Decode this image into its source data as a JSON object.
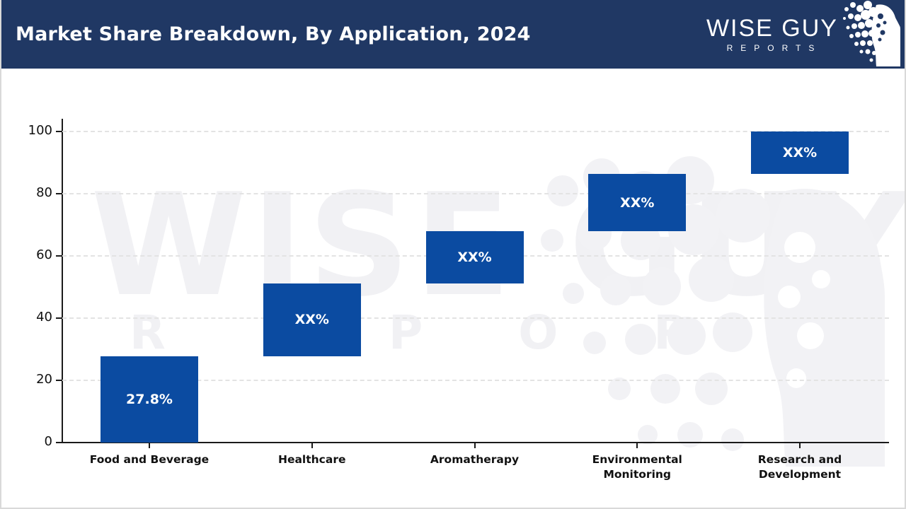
{
  "header": {
    "title": "Market Share Breakdown, By Application, 2024",
    "logo": {
      "line1": "WISE GUY",
      "line2": "REPORTS"
    }
  },
  "watermark": {
    "line1": "WISE GUY",
    "line2": "R E P O R T S"
  },
  "colors": {
    "header_bg": "#203864",
    "bar": "#0b4ba1",
    "bar_label_text": "#ffffff",
    "grid": "#e3e3e3",
    "axis": "#1a1a1a",
    "watermark": "#f1f1f4"
  },
  "chart_data": {
    "type": "bar",
    "subtype": "waterfall",
    "title": "Market Share Breakdown, By Application, 2024",
    "xlabel": "",
    "ylabel": "",
    "ylim": [
      0,
      100
    ],
    "yticks": [
      0,
      20,
      40,
      60,
      80,
      100
    ],
    "grid": "horizontal-dashed",
    "categories": [
      "Food and Beverage",
      "Healthcare",
      "Aromatherapy",
      "Environmental Monitoring",
      "Research and Development"
    ],
    "segments": [
      {
        "start": 0,
        "end": 27.8,
        "value": 27.8,
        "label": "27.8%"
      },
      {
        "start": 27.8,
        "end": 51.0,
        "value": 23.2,
        "label": "XX%"
      },
      {
        "start": 51.0,
        "end": 67.8,
        "value": 16.8,
        "label": "XX%"
      },
      {
        "start": 67.8,
        "end": 86.2,
        "value": 18.4,
        "label": "XX%"
      },
      {
        "start": 86.2,
        "end": 100,
        "value": 13.8,
        "label": "XX%"
      }
    ]
  }
}
